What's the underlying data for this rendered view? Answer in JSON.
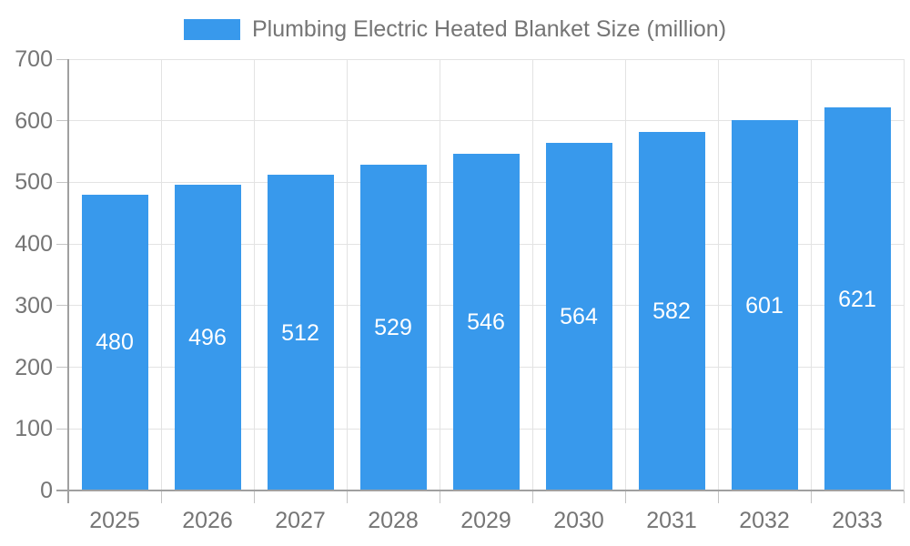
{
  "chart_data": {
    "type": "bar",
    "title": "Plumbing Electric Heated Blanket Size (million)",
    "legend": "Plumbing Electric Heated Blanket Size (million)",
    "legend_position": "top-center",
    "categories": [
      "2025",
      "2026",
      "2027",
      "2028",
      "2029",
      "2030",
      "2031",
      "2032",
      "2033"
    ],
    "values": [
      480,
      496,
      512,
      529,
      546,
      564,
      582,
      601,
      621
    ],
    "data_labels_shown": true,
    "xlabel": "",
    "ylabel": "",
    "ylim": [
      0,
      700
    ],
    "ytick_step": 100,
    "grid": true,
    "colors": {
      "bar": "#3899EC",
      "bar_label": "#FFFFFF",
      "axis_text": "#757575",
      "legend_text": "#757575",
      "gridline": "#E3E3E3",
      "tick": "#C4C4C4",
      "axis_line": "#A0A0A0",
      "background": "#FFFFFF"
    }
  }
}
